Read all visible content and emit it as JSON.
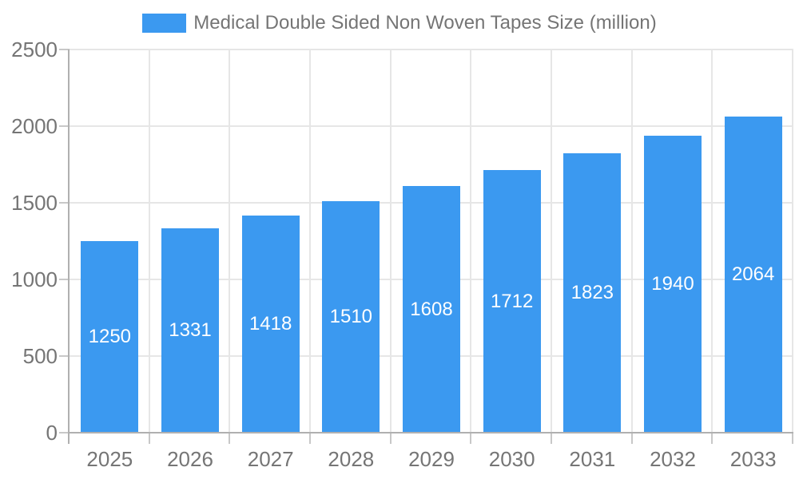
{
  "legend": {
    "label": "Medical Double Sided Non Woven Tapes Size (million)"
  },
  "chart_data": {
    "type": "bar",
    "title": "Medical Double Sided Non Woven Tapes Size (million)",
    "categories": [
      "2025",
      "2026",
      "2027",
      "2028",
      "2029",
      "2030",
      "2031",
      "2032",
      "2033"
    ],
    "series": [
      {
        "name": "Medical Double Sided Non Woven Tapes Size (million)",
        "values": [
          1250,
          1331,
          1418,
          1510,
          1608,
          1712,
          1823,
          1940,
          2064
        ]
      }
    ],
    "value_labels_shown": true,
    "xlabel": "",
    "ylabel": "",
    "ylim": [
      0,
      2500
    ],
    "yticks": [
      0,
      500,
      1000,
      1500,
      2000,
      2500
    ],
    "grid": true,
    "legend_position": "top-center",
    "colors": {
      "bar": "#3b99f0",
      "value_label": "#ffffff",
      "axis_text": "#757575",
      "grid_line": "#e6e6e6",
      "axis_line": "#b0b0b0",
      "tick": "#c8c8c8",
      "background": "#ffffff"
    }
  }
}
